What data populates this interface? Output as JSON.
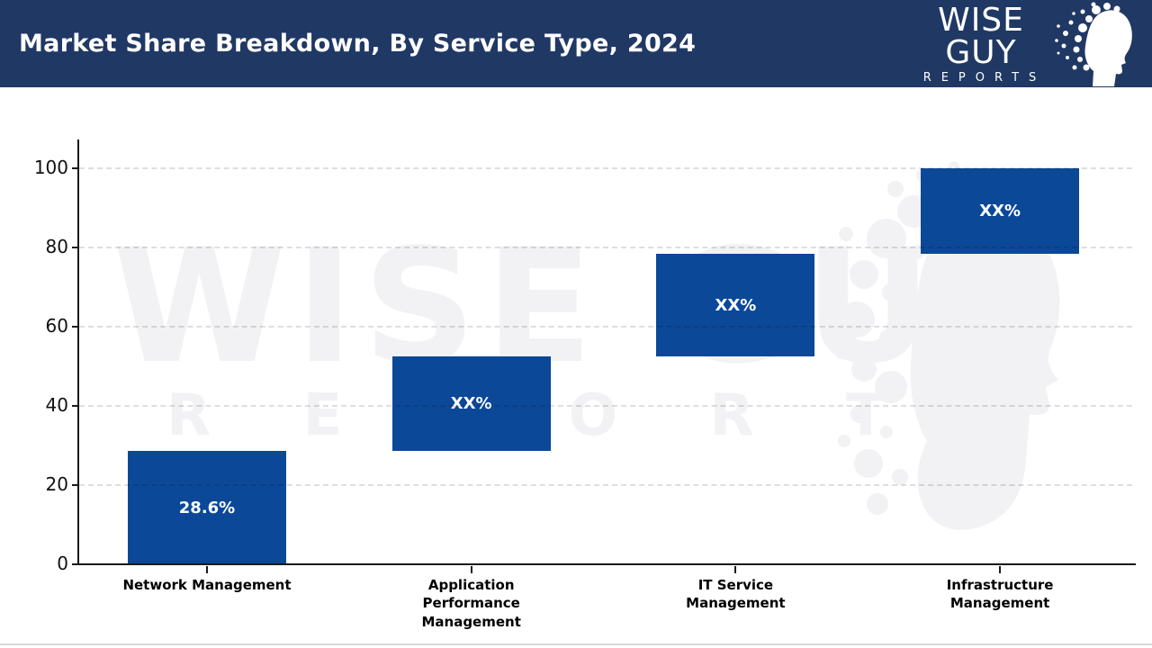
{
  "header": {
    "title": "Market Share Breakdown, By Service Type, 2024",
    "logo": {
      "line1": "WISE GUY",
      "line2": "REPORTS"
    }
  },
  "watermark": {
    "line1": "WISE GU",
    "line2": "R E P O R T S"
  },
  "colors": {
    "header_bg": "#203864",
    "bar": "#0b4898",
    "bar_label": "#ffffff",
    "axis": "#1a1a1a",
    "grid": "#e0e0e0",
    "watermark": "#f2f2f4"
  },
  "chart_data": {
    "type": "bar",
    "subtype": "floating-waterfall",
    "title": "Market Share Breakdown, By Service Type, 2024",
    "xlabel": "",
    "ylabel": "",
    "ylim": [
      0,
      107
    ],
    "yticks": [
      0,
      20,
      40,
      60,
      80,
      100
    ],
    "grid": "dashed-horizontal",
    "legend": "none",
    "categories": [
      "Network Management",
      "Application Performance Management",
      "IT Service Management",
      "Infrastructure Management"
    ],
    "category_label_lines": [
      [
        "Network Management"
      ],
      [
        "Application",
        "Performance",
        "Management"
      ],
      [
        "IT Service",
        "Management"
      ],
      [
        "Infrastructure",
        "Management"
      ]
    ],
    "segments": [
      {
        "category": "Network Management",
        "start": 0,
        "end": 28.6,
        "size_est": 28.6,
        "label": "28.6%"
      },
      {
        "category": "Application Performance Management",
        "start": 28.6,
        "end": 52.4,
        "size_est": 23.8,
        "label": "XX%"
      },
      {
        "category": "IT Service Management",
        "start": 52.4,
        "end": 78.3,
        "size_est": 25.9,
        "label": "XX%"
      },
      {
        "category": "Infrastructure Management",
        "start": 78.3,
        "end": 100,
        "size_est": 21.7,
        "label": "XX%"
      }
    ]
  }
}
